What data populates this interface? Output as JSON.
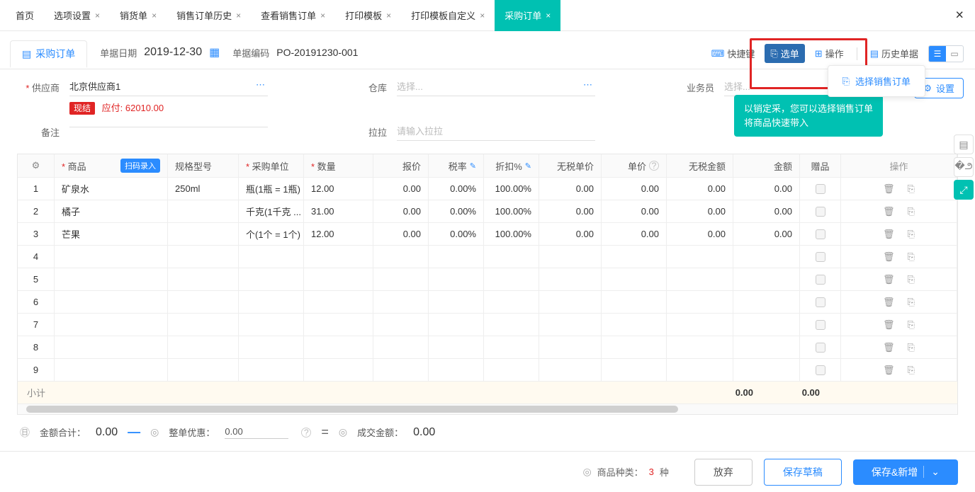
{
  "tabs": [
    "首页",
    "选项设置",
    "销货单",
    "销售订单历史",
    "查看销售订单",
    "打印模板",
    "打印模板自定义",
    "采购订单"
  ],
  "activeTabIdx": 7,
  "docTab": "采购订单",
  "dateLabel": "单据日期",
  "dateValue": "2019-12-30",
  "codeLabel": "单据编码",
  "codeValue": "PO-20191230-001",
  "toolShortcut": "快捷键",
  "toolSelect": "选单",
  "toolOps": "操作",
  "toolHistory": "历史单据",
  "dropdownItem": "选择销售订单",
  "settingsBtn": "设置",
  "tooltipText": "以销定采，您可以选择销售订单将商品快速带入",
  "supplierLabel": "供应商",
  "supplierValue": "北京供应商1",
  "payBadge": "现结",
  "payText": "应付: 62010.00",
  "warehouseLabel": "仓库",
  "warehousePh": "选择...",
  "salesmanLabel": "业务员",
  "salesmanPh": "选择...",
  "remarkLabel": "备注",
  "lalaLabel": "拉拉",
  "lalaPh": "请输入拉拉",
  "scanBadge": "扫码录入",
  "cols": {
    "product": "商品",
    "spec": "规格型号",
    "unit": "采购单位",
    "qty": "数量",
    "quote": "报价",
    "rate": "税率",
    "disc": "折扣%",
    "notax": "无税单价",
    "price": "单价",
    "notaxamt": "无税金额",
    "amt": "金额",
    "gift": "赠品",
    "ops": "操作"
  },
  "rows": [
    {
      "idx": "1",
      "prod": "矿泉水",
      "spec": "250ml",
      "unit": "瓶(1瓶 = 1瓶)",
      "qty": "12.00",
      "quote": "0.00",
      "rate": "0.00%",
      "disc": "100.00%",
      "notax": "0.00",
      "price": "0.00",
      "notaxamt": "0.00",
      "amt": "0.00"
    },
    {
      "idx": "2",
      "prod": "橘子",
      "spec": "",
      "unit": "千克(1千克 ...",
      "qty": "31.00",
      "quote": "0.00",
      "rate": "0.00%",
      "disc": "100.00%",
      "notax": "0.00",
      "price": "0.00",
      "notaxamt": "0.00",
      "amt": "0.00"
    },
    {
      "idx": "3",
      "prod": "芒果",
      "spec": "",
      "unit": "个(1个 = 1个)",
      "qty": "12.00",
      "quote": "0.00",
      "rate": "0.00%",
      "disc": "100.00%",
      "notax": "0.00",
      "price": "0.00",
      "notaxamt": "0.00",
      "amt": "0.00"
    },
    {
      "idx": "4"
    },
    {
      "idx": "5"
    },
    {
      "idx": "6"
    },
    {
      "idx": "7"
    },
    {
      "idx": "8"
    },
    {
      "idx": "9"
    }
  ],
  "subtotalLabel": "小计",
  "subtotalNotax": "0.00",
  "subtotalAmt": "0.00",
  "totalLabel": "金额合计：",
  "totalVal": "0.00",
  "discountLabel": "整单优惠：",
  "discountVal": "0.00",
  "dealLabel": "成交金额：",
  "dealVal": "0.00",
  "skuLabel": "商品种类：",
  "skuCount": "3",
  "skuUnit": " 种",
  "btnDiscard": "放弃",
  "btnDraft": "保存草稿",
  "btnSave": "保存&新增"
}
